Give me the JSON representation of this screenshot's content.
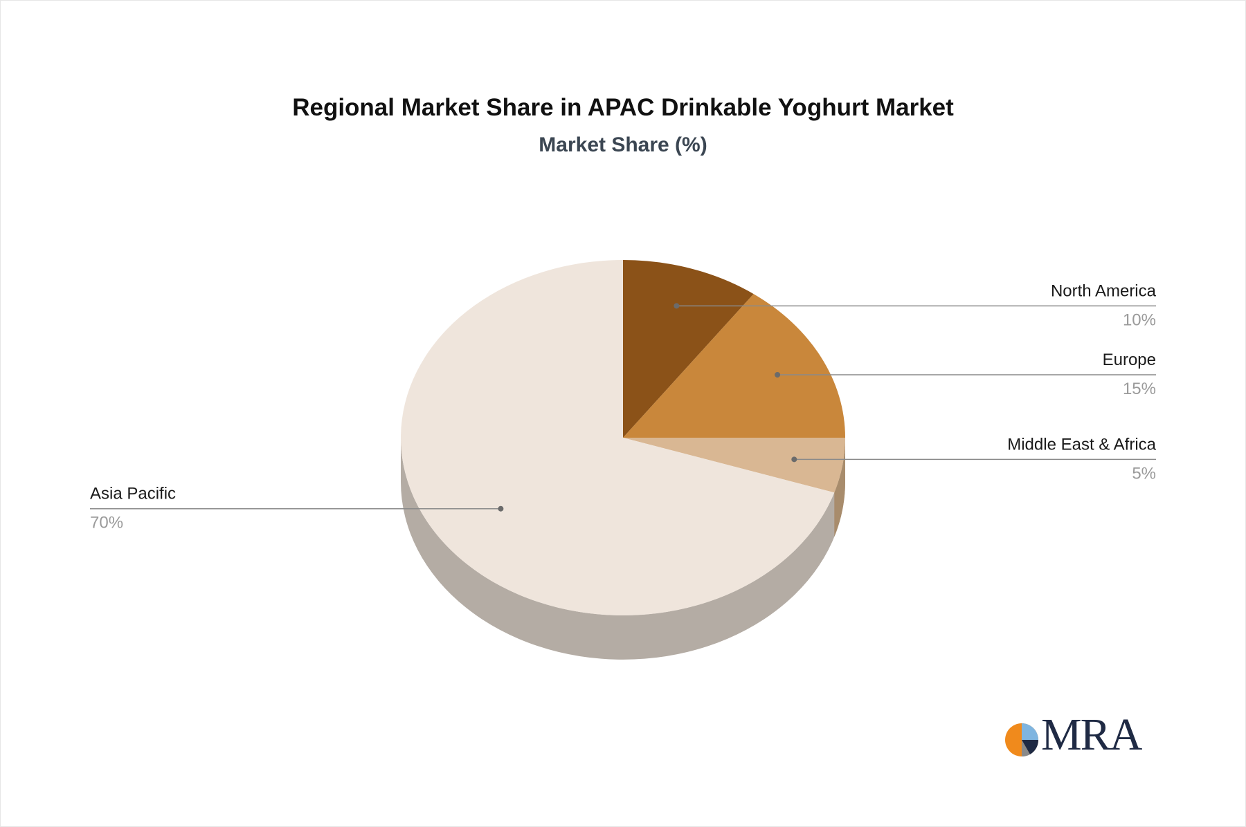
{
  "chart_data": {
    "type": "pie",
    "title": "Regional Market Share in APAC Drinkable Yoghurt Market",
    "subtitle": "Market Share (%)",
    "slices": [
      {
        "label": "North America",
        "value": 10,
        "value_label": "10%",
        "color": "#8b5218"
      },
      {
        "label": "Europe",
        "value": 15,
        "value_label": "15%",
        "color": "#c9873b"
      },
      {
        "label": "Middle East & Africa",
        "value": 5,
        "value_label": "5%",
        "color": "#d9b793"
      },
      {
        "label": "Asia Pacific",
        "value": 70,
        "value_label": "70%",
        "color": "#efe5dc"
      }
    ],
    "side_color": "#b4aca4",
    "style": "3d"
  },
  "logo": {
    "text": "MRA",
    "colors": {
      "orange": "#f08a1c",
      "light_blue": "#7fb5e0",
      "navy": "#1f2a44",
      "grey": "#8a8a8a"
    }
  }
}
